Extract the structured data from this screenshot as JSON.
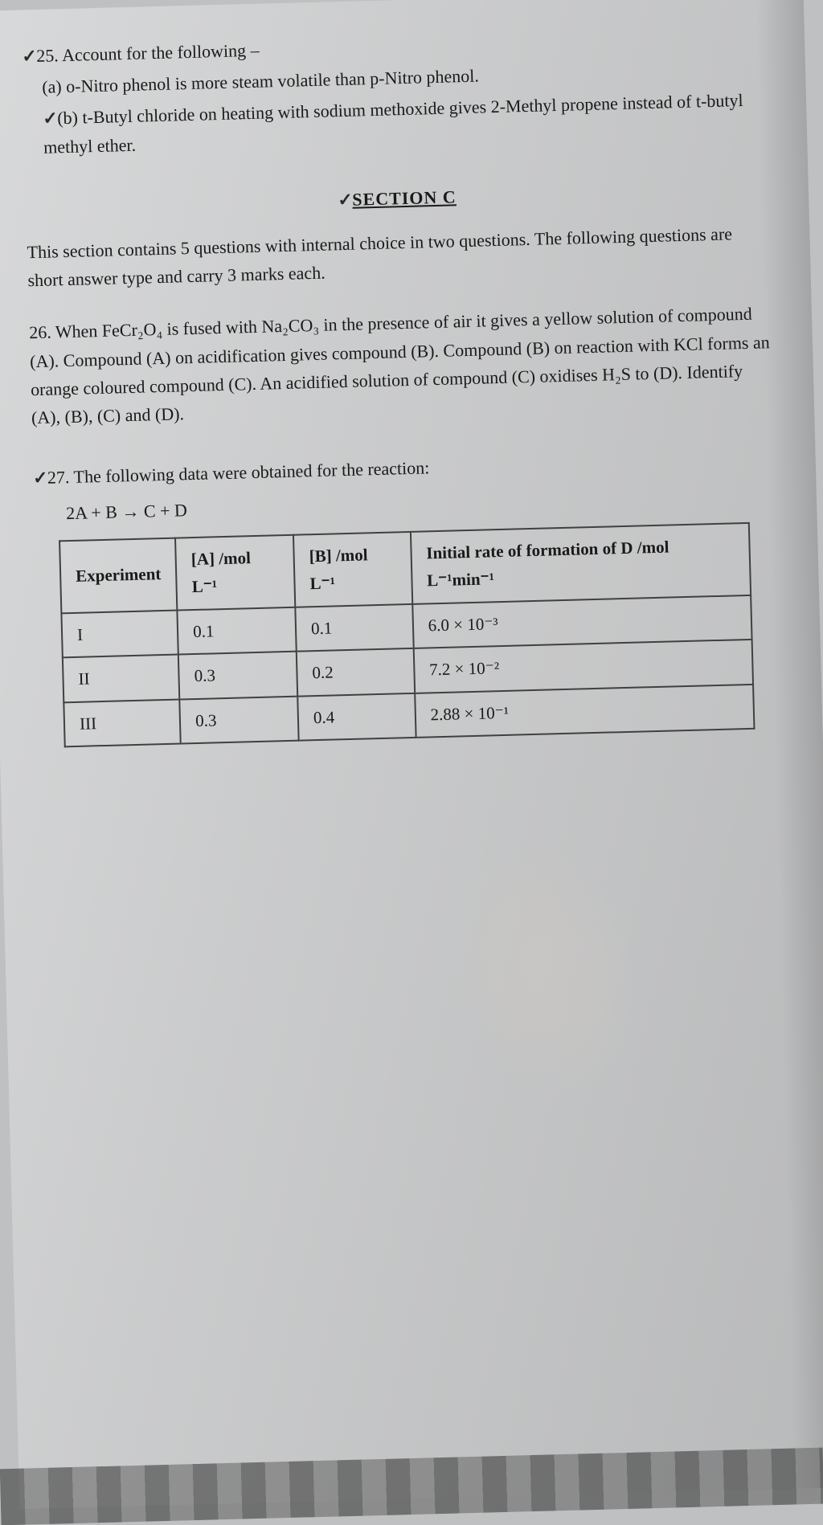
{
  "q25": {
    "intro": "25. Account for the following –",
    "a": "(a) o-Nitro phenol is more steam volatile than p-Nitro phenol.",
    "b": "(b) t-Butyl chloride on heating with sodium methoxide gives 2-Methyl propene instead of t-butyl methyl ether."
  },
  "sectionC": {
    "title": "SECTION C",
    "desc": "This section contains 5 questions with internal choice in two questions. The following questions are short answer type and carry 3 marks each."
  },
  "q26": {
    "text": "26. When FeCr₂O₄ is fused with Na₂CO₃ in the presence of air it gives a yellow solution of compound (A). Compound (A) on acidification gives compound (B). Compound (B) on reaction with KCl forms an orange coloured compound (C). An acidified solution of compound (C) oxidises H₂S to (D). Identify (A), (B), (C) and (D)."
  },
  "q27": {
    "intro": "27. The following data were obtained for the reaction:",
    "eqn": "2A + B → C + D",
    "table": {
      "headers": [
        "Experiment",
        "[A] /mol L⁻¹",
        "[B] /mol L⁻¹",
        "Initial rate of formation of D /mol L⁻¹min⁻¹"
      ],
      "rows": [
        [
          "I",
          "0.1",
          "0.1",
          "6.0 × 10⁻³"
        ],
        [
          "II",
          "0.3",
          "0.2",
          "7.2 × 10⁻²"
        ],
        [
          "III",
          "0.3",
          "0.4",
          "2.88 × 10⁻¹"
        ]
      ]
    }
  }
}
